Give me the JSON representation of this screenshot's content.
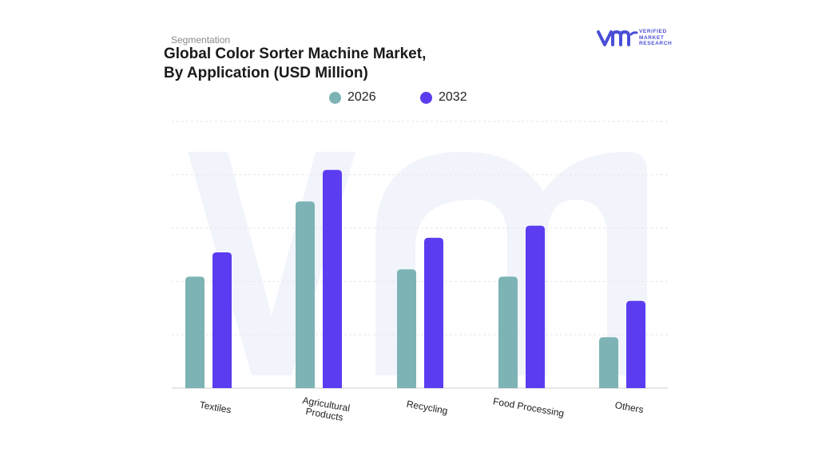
{
  "header": {
    "eyebrow": "Segmentation",
    "title_line1": "Global Color Sorter Machine Market,",
    "title_line2": "By Application (USD Million)"
  },
  "logo": {
    "line1": "VERIFIED",
    "line2": "MARKET",
    "line3": "RESEARCH",
    "icon": "vmr-logo-icon",
    "color": "#4a4fd6"
  },
  "chart_data": {
    "type": "bar",
    "title": "Global Color Sorter Machine Market, By Application (USD Million)",
    "xlabel": "",
    "ylabel": "",
    "categories": [
      [
        "Textiles"
      ],
      [
        "Agricultural",
        "Products"
      ],
      [
        "Recycling"
      ],
      [
        "Food Processing"
      ],
      [
        "Others"
      ]
    ],
    "series": [
      {
        "name": "2026",
        "color": "#7db3b5",
        "values": [
          46,
          77,
          49,
          46,
          21
        ]
      },
      {
        "name": "2032",
        "color": "#5b3cf0",
        "values": [
          56,
          90,
          62,
          67,
          36
        ]
      }
    ],
    "ylim": [
      0,
      110
    ],
    "grid": true,
    "legend_position": "top-center",
    "watermark_color": "#eef0fb"
  }
}
